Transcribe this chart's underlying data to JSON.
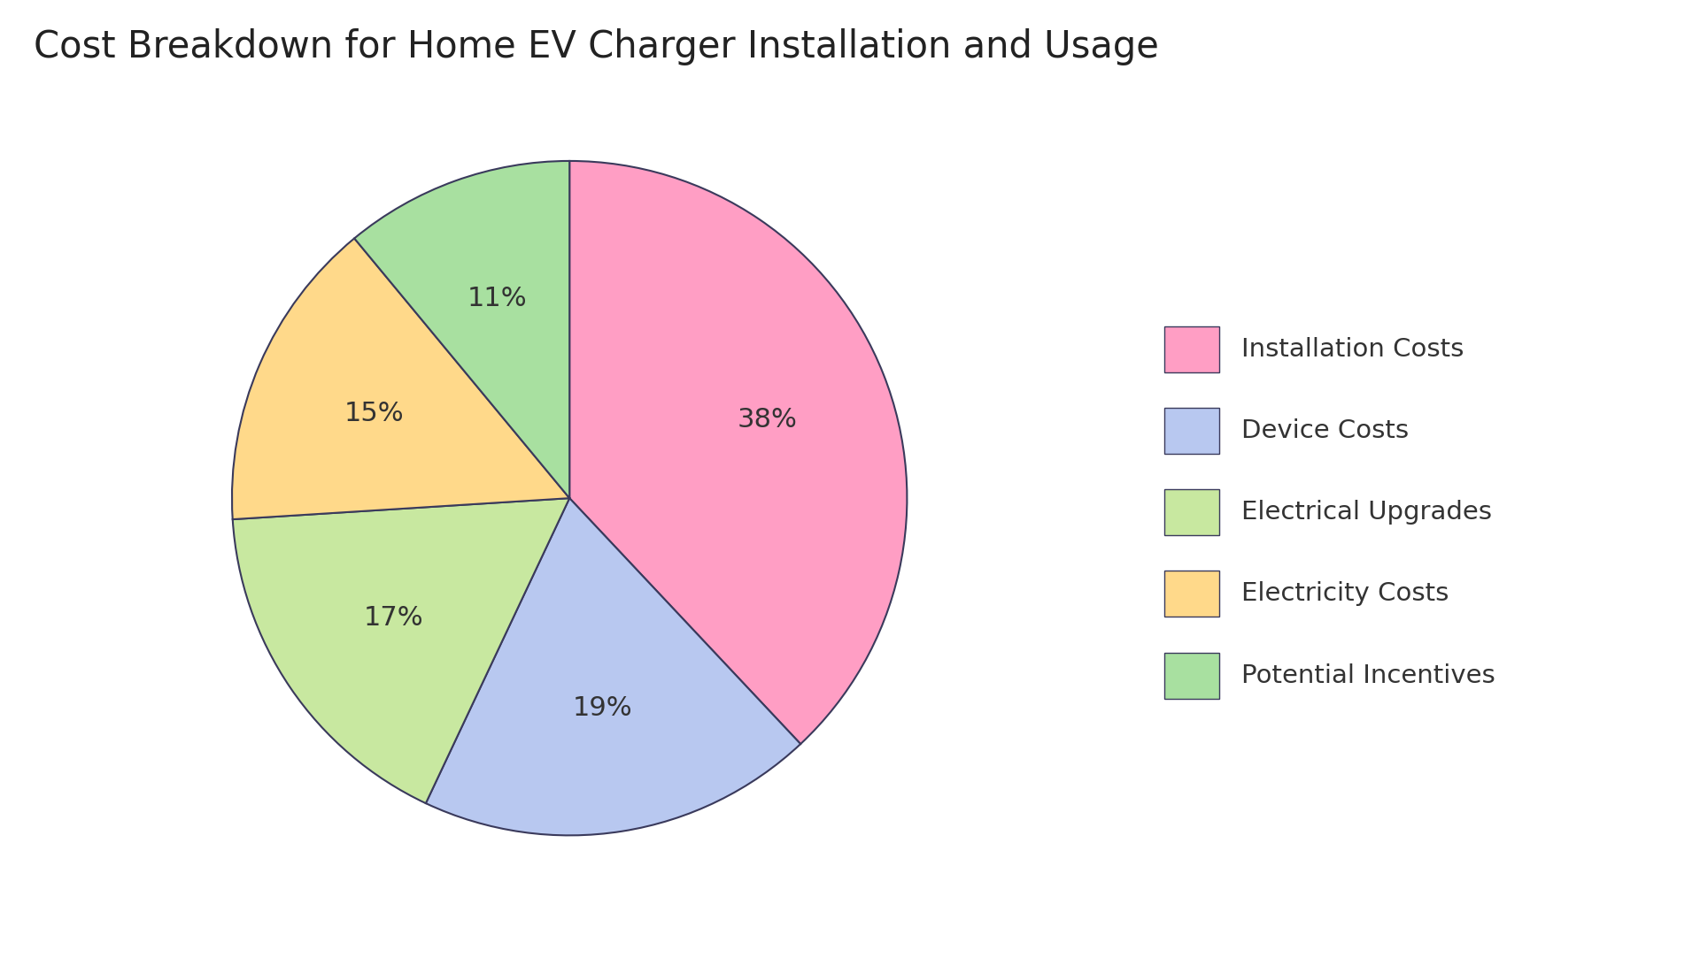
{
  "title": "Cost Breakdown for Home EV Charger Installation and Usage",
  "segments": [
    {
      "label": "Installation Costs",
      "pct": 38,
      "color": "#FF9EC4"
    },
    {
      "label": "Device Costs",
      "pct": 19,
      "color": "#B8C8F0"
    },
    {
      "label": "Electrical Upgrades",
      "pct": 17,
      "color": "#C8E8A0"
    },
    {
      "label": "Electricity Costs",
      "pct": 15,
      "color": "#FFD98A"
    },
    {
      "label": "Potential Incentives",
      "pct": 11,
      "color": "#A8E0A0"
    }
  ],
  "edge_color": "#3a3a5c",
  "edge_width": 1.5,
  "background_color": "#ffffff",
  "title_fontsize": 30,
  "label_fontsize": 22,
  "legend_fontsize": 21,
  "start_angle": 90,
  "counterclock": false
}
